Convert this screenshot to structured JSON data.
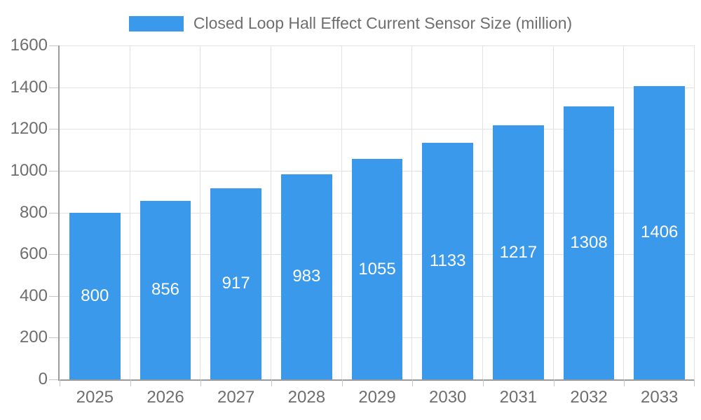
{
  "chart_data": {
    "type": "bar",
    "title": "Closed Loop Hall Effect Current Sensor Size (million)",
    "categories": [
      "2025",
      "2026",
      "2027",
      "2028",
      "2029",
      "2030",
      "2031",
      "2032",
      "2033"
    ],
    "values": [
      800,
      856,
      917,
      983,
      1055,
      1133,
      1217,
      1308,
      1406
    ],
    "xlabel": "",
    "ylabel": "",
    "ylim": [
      0,
      1600
    ],
    "yticks": [
      0,
      200,
      400,
      600,
      800,
      1000,
      1200,
      1400,
      1600
    ],
    "grid": true,
    "legend_position": "top",
    "value_labels": "inside-center",
    "colors": {
      "bar": "#3b99ec",
      "bar_value_label": "#ffffff",
      "axis_line": "#9a9a9a",
      "grid_line": "#e2e2e2",
      "tick_mark": "#c6c6c6",
      "tick_label": "#6e6e6e",
      "legend_text": "#6e6e6e",
      "background": "#ffffff"
    }
  }
}
